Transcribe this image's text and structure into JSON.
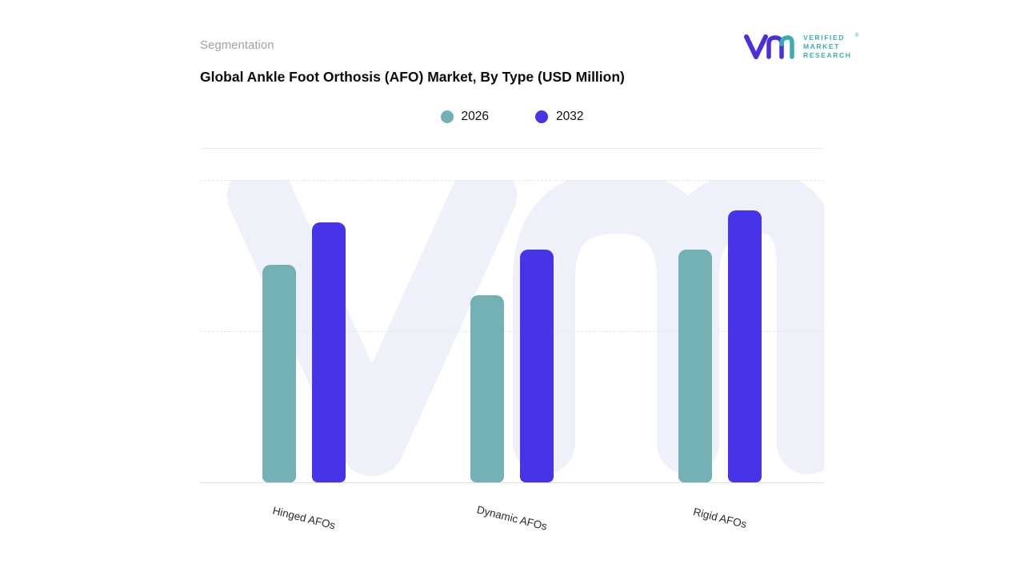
{
  "header": {
    "eyebrow": "Segmentation",
    "title": "Global Ankle Foot Orthosis (AFO) Market, By Type (USD Million)"
  },
  "logo": {
    "lines": [
      "VERIFIED",
      "MARKET",
      "RESEARCH"
    ],
    "registered": "®",
    "text_color": "#3badb0",
    "mark_purple": "#4930db",
    "mark_teal": "#38aeb1"
  },
  "legend": [
    {
      "label": "2026",
      "color": "#74b1b4"
    },
    {
      "label": "2032",
      "color": "#4733e8"
    }
  ],
  "chart_data": {
    "type": "bar",
    "title": "Global Ankle Foot Orthosis (AFO) Market, By Type (USD Million)",
    "categories": [
      "Hinged AFOs",
      "Dynamic AFOs",
      "Rigid AFOs"
    ],
    "series": [
      {
        "name": "2026",
        "color": "#74b1b4",
        "values": [
          72,
          62,
          77
        ]
      },
      {
        "name": "2032",
        "color": "#4733e8",
        "values": [
          86,
          77,
          90
        ]
      }
    ],
    "xlabel": "",
    "ylabel": "",
    "ylim": [
      0,
      100
    ],
    "grid": "horizontal dashed at 50 and 100, solid baseline at 0",
    "legend_position": "top-center",
    "x_tick_rotation_deg": 14
  },
  "watermark": {
    "name": "vmr-watermark",
    "color": "#eef0fa"
  }
}
